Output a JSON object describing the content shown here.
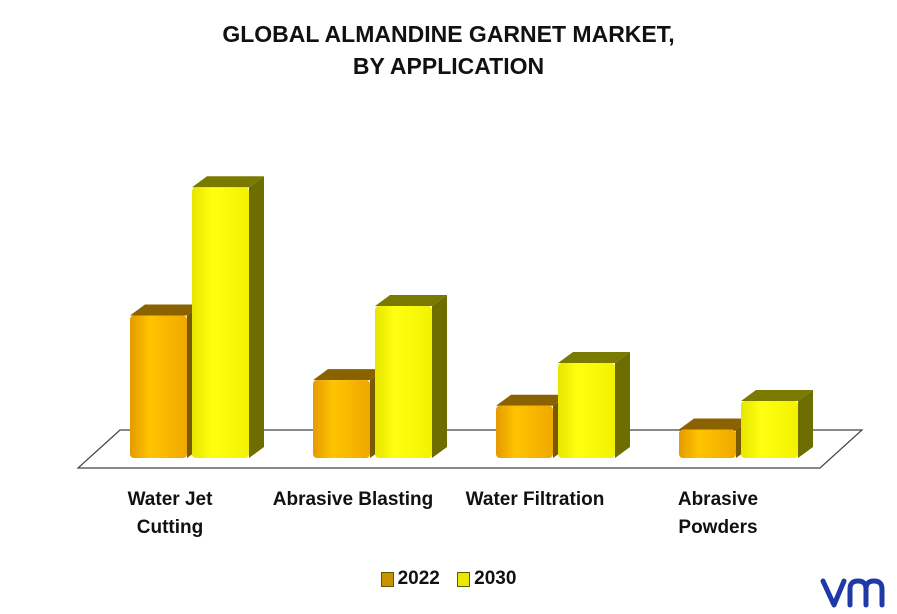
{
  "chart_data": {
    "type": "bar",
    "title_line1": "GLOBAL ALMANDINE GARNET MARKET,",
    "title_line2": "BY APPLICATION",
    "categories": [
      {
        "line1": "Water Jet",
        "line2": "Cutting"
      },
      {
        "line1": "Abrasive Blasting",
        "line2": ""
      },
      {
        "line1": "Water Filtration",
        "line2": ""
      },
      {
        "line1": "Abrasive",
        "line2": "Powders"
      }
    ],
    "series": [
      {
        "name": "2022",
        "values": [
          150,
          82,
          55,
          30
        ],
        "color": "#f5b800"
      },
      {
        "name": "2030",
        "values": [
          285,
          160,
          100,
          60
        ],
        "color": "#ffff00"
      }
    ],
    "ylim": [
      0,
      300
    ],
    "grid": false,
    "legend_position": "bottom"
  },
  "logo": {
    "text": "vm",
    "color": "#1f3aa8"
  }
}
